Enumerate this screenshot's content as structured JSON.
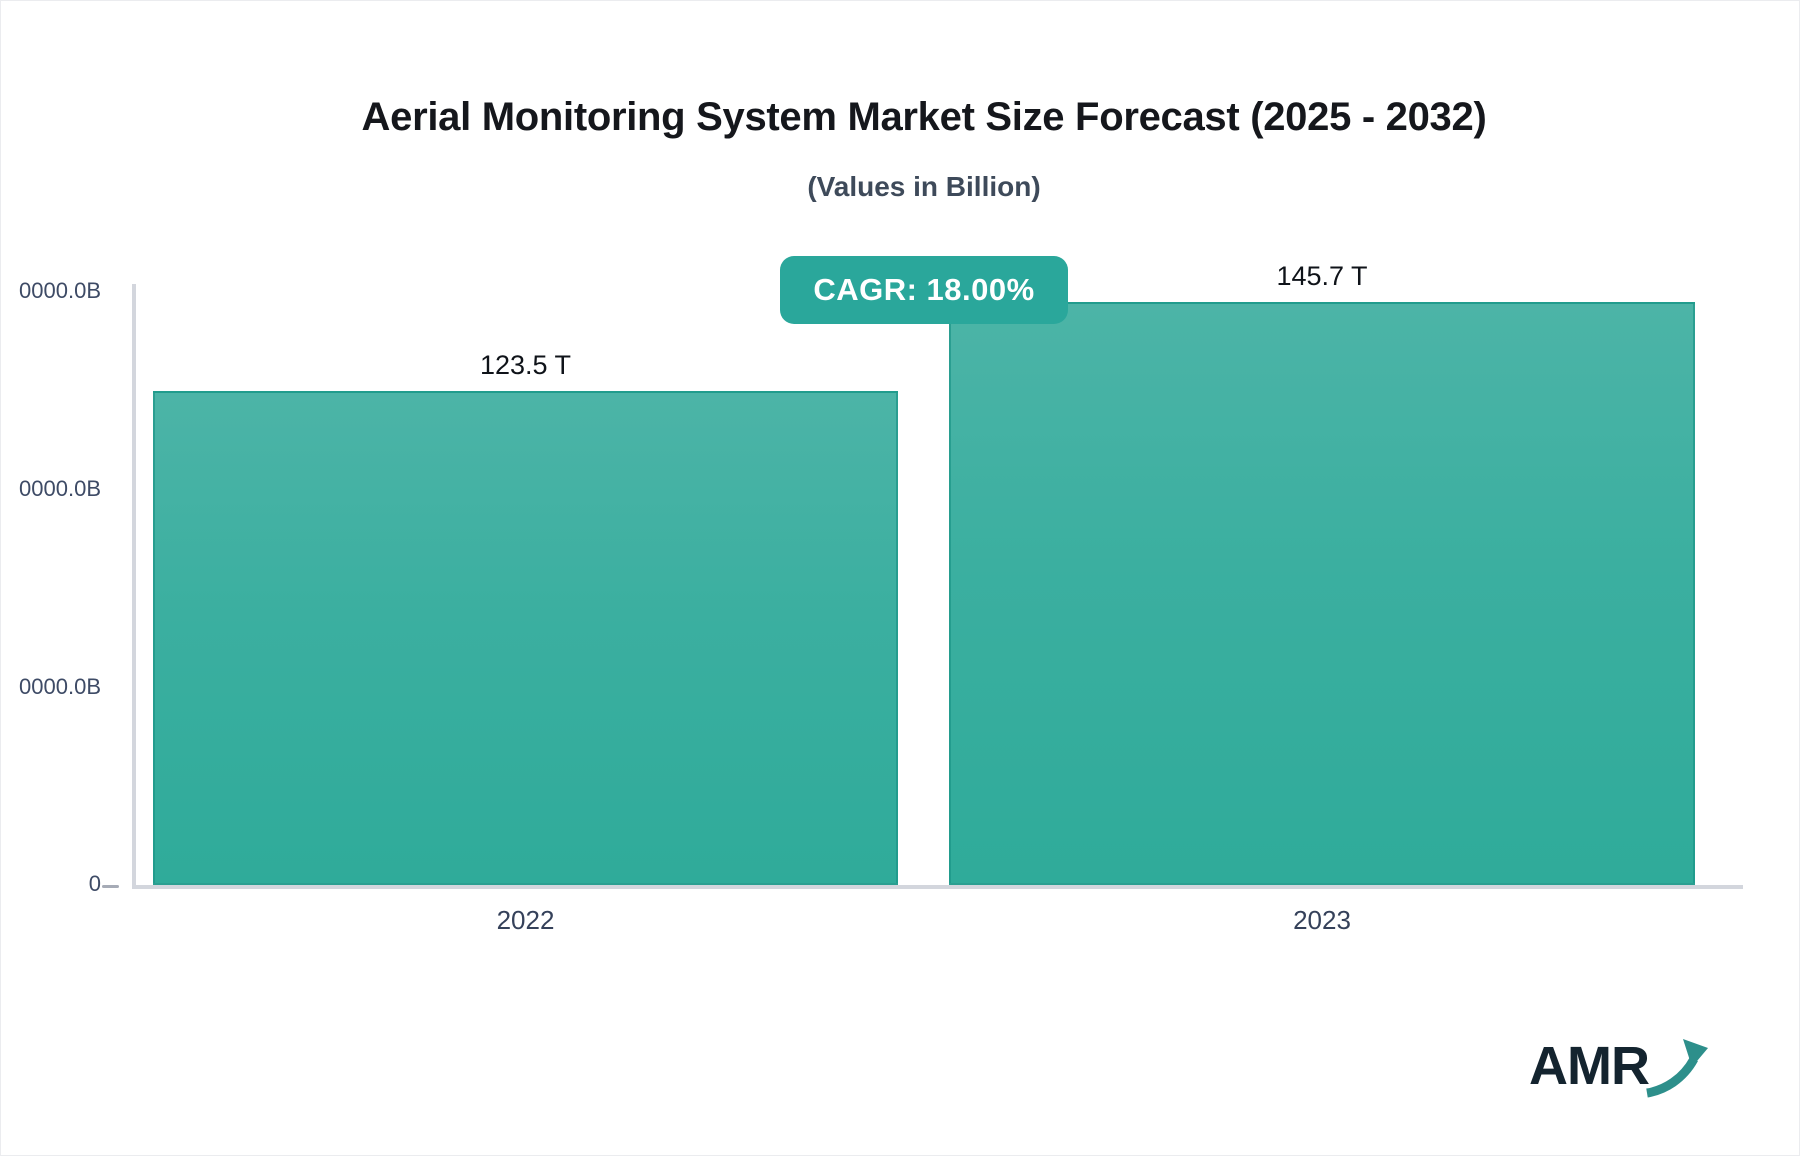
{
  "header": {
    "title": "Aerial Monitoring System Market Size Forecast (2025 - 2032)",
    "subtitle": "(Values in Billion)"
  },
  "badge": {
    "label": "CAGR: 18.00%",
    "color": "#2aa79b"
  },
  "chart_data": {
    "type": "bar",
    "title": "Aerial Monitoring System Market Size Forecast (2025 - 2032)",
    "subtitle": "(Values in Billion)",
    "categories": [
      "2022",
      "2023"
    ],
    "values": [
      123500,
      145700
    ],
    "value_unit": "Billion",
    "value_labels": [
      "123.5 T",
      "145.7 T"
    ],
    "cagr_label": "CAGR: 18.00%",
    "y_ticks": [
      "0000.0B",
      "0000.0B",
      "0000.0B",
      "0"
    ],
    "ylim": [
      0,
      150000
    ],
    "grid": false,
    "legend": false,
    "bar_colors": {
      "top": "#4cb4a7",
      "bottom": "#2fab9a",
      "border": "#2a9d90"
    },
    "axis_color": "#d3d6dd",
    "tick_label_color": "#3e4b66"
  },
  "logo": {
    "text": "AMR",
    "text_color": "#14242f",
    "arrow_color": "#2d8f8b"
  }
}
